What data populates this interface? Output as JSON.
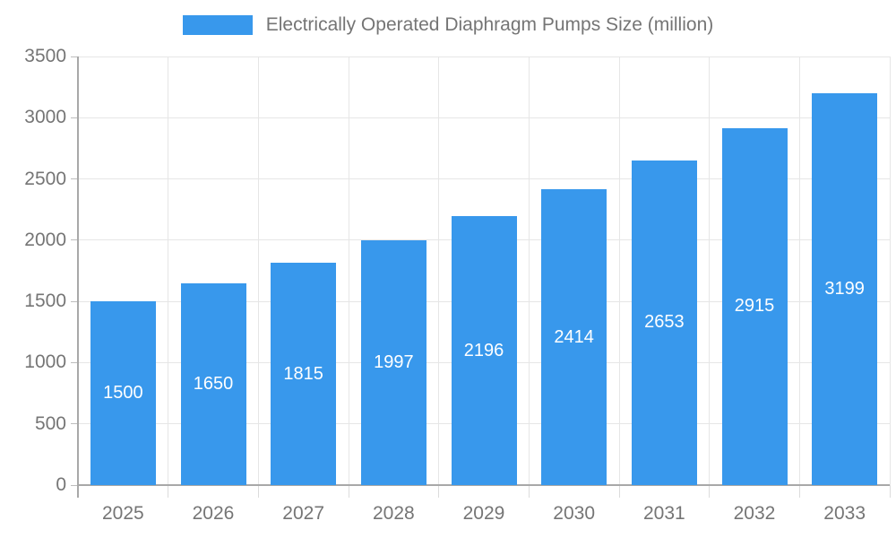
{
  "legend": {
    "label": "Electrically Operated Diaphragm Pumps Size (million)"
  },
  "colors": {
    "bar": "#3898EC",
    "text": "#757575",
    "value_label": "#FFFFFF",
    "grid": "#E6E6E6",
    "axis": "#A8A8A8"
  },
  "chart_data": {
    "type": "bar",
    "title": "",
    "xlabel": "",
    "ylabel": "",
    "categories": [
      "2025",
      "2026",
      "2027",
      "2028",
      "2029",
      "2030",
      "2031",
      "2032",
      "2033"
    ],
    "series": [
      {
        "name": "Electrically Operated Diaphragm Pumps Size (million)",
        "values": [
          1500,
          1650,
          1815,
          1997,
          2196,
          2414,
          2653,
          2915,
          3199
        ]
      }
    ],
    "value_labels": [
      1500,
      1650,
      1815,
      1997,
      2196,
      2414,
      2653,
      2915,
      3199
    ],
    "value_label_position": "inside-center",
    "ylim": [
      0,
      3500
    ],
    "ytick_step": 500,
    "ytick_labels": [
      "0",
      "500",
      "1000",
      "1500",
      "2000",
      "2500",
      "3000",
      "3500"
    ],
    "grid": true,
    "legend_position": "top-center",
    "bar_color": "#3898EC"
  }
}
